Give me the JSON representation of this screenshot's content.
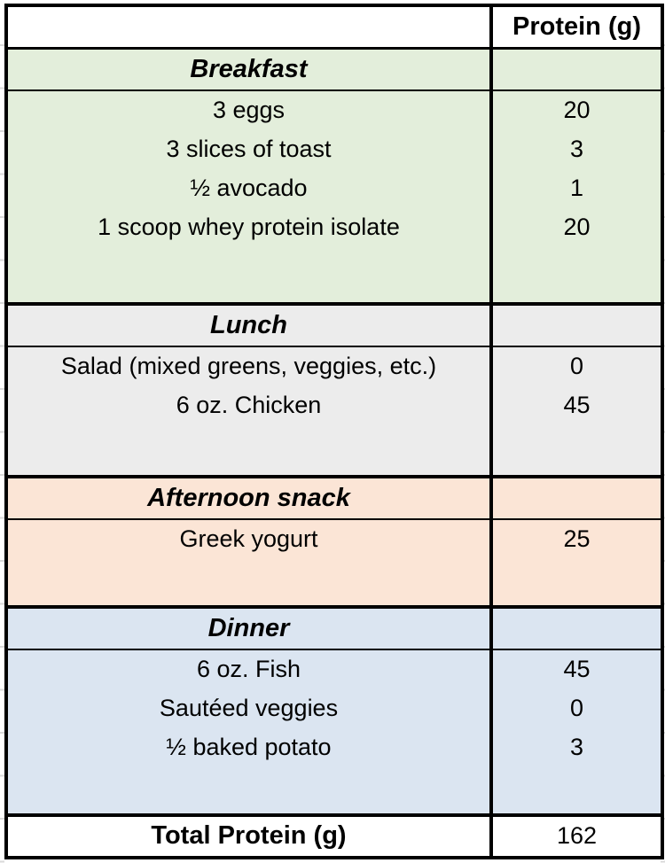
{
  "table": {
    "header": {
      "item_col_label": "",
      "protein_col_label": "Protein (g)"
    },
    "sections": [
      {
        "name": "Breakfast",
        "color": "#e3eedb",
        "items": [
          {
            "label": "3 eggs",
            "protein": "20"
          },
          {
            "label": "3 slices of toast",
            "protein": "3"
          },
          {
            "label": "½ avocado",
            "protein": "1"
          },
          {
            "label": "1 scoop whey protein isolate",
            "protein": "20"
          }
        ]
      },
      {
        "name": "Lunch",
        "color": "#ececec",
        "items": [
          {
            "label": "Salad (mixed greens, veggies, etc.)",
            "protein": "0"
          },
          {
            "label": "6 oz. Chicken",
            "protein": "45"
          }
        ]
      },
      {
        "name": "Afternoon snack",
        "color": "#fbe5d6",
        "items": [
          {
            "label": "Greek yogurt",
            "protein": "25"
          }
        ]
      },
      {
        "name": "Dinner",
        "color": "#dbe5f1",
        "items": [
          {
            "label": "6 oz. Fish",
            "protein": "45"
          },
          {
            "label": "Sautéed veggies",
            "protein": "0"
          },
          {
            "label": "½ baked potato",
            "protein": "3"
          }
        ]
      }
    ],
    "total": {
      "label": "Total Protein (g)",
      "value": "162"
    }
  },
  "colors": {
    "breakfast": "#e3eedb",
    "lunch": "#ececec",
    "snack": "#fbe5d6",
    "dinner": "#dbe5f1",
    "border": "#000000",
    "grid_stub": "#d9d9d9",
    "background": "#ffffff"
  }
}
